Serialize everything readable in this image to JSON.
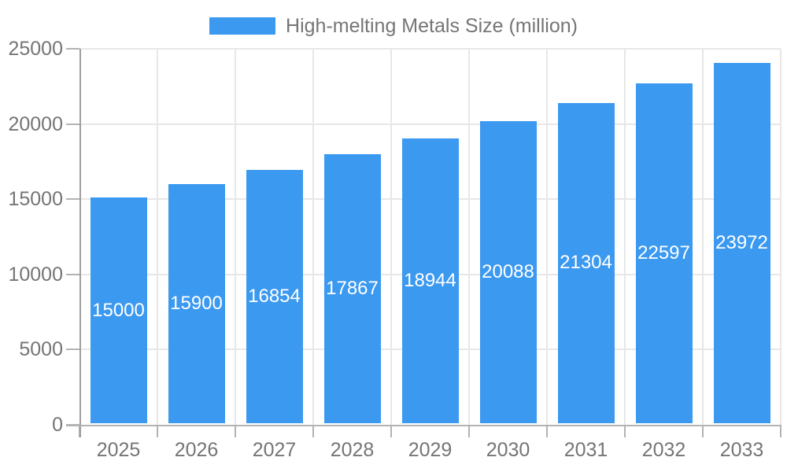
{
  "chart_data": {
    "type": "bar",
    "legend": "High-melting Metals Size (million)",
    "legend_position": "top-center",
    "categories": [
      "2025",
      "2026",
      "2027",
      "2028",
      "2029",
      "2030",
      "2031",
      "2032",
      "2033"
    ],
    "values": [
      15000,
      15900,
      16854,
      17867,
      18944,
      20088,
      21304,
      22597,
      23972
    ],
    "yticks": [
      0,
      5000,
      10000,
      15000,
      20000,
      25000
    ],
    "ylim": [
      0,
      25000
    ],
    "xlabel": "",
    "ylabel": "",
    "grid": "horizontal and vertical light gridlines",
    "value_labels": "white, centered inside bars",
    "colors": {
      "bar": "#3B99F0",
      "grid": "#E7E7E7",
      "axis": "#B3B3B3",
      "axis_dark": "#9E9E9E",
      "text": "#757575",
      "value_label": "#FFFFFF"
    }
  }
}
